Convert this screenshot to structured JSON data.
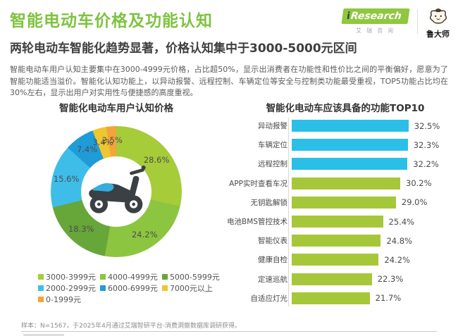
{
  "header": {
    "title": "智能电动车价格及功能认知",
    "subtitle": "两轮电动车智能化趋势显著，价格认知集中于3000-5000元区间",
    "iresearch": {
      "i": "i",
      "rest": "Research",
      "caption": "艾瑞咨询"
    },
    "ludashi": {
      "name": "鲁大师"
    }
  },
  "intro_paragraph": "智能电动车用户认知主要集中在3000-4999元价格，占比超50%，显示出消费者在功能性和性价比之间的平衡偏好，愿意为了智能功能适当溢价。智能化认知功能上，以异动报警、远程控制、车辆定位等安全与控制类功能最受重视，TOP5功能占比均在30%左右，显示出用户对实用性与便捷感的高度重视。",
  "footer": {
    "source_note": "样本：N=1567，于2025年4月通过艾瑞智研平台-消费洞察数据库调研获得。"
  },
  "colors": {
    "title_green": "#7fc241",
    "bar_cyan": "#2bbfe8",
    "bar_green": "#a6c73a",
    "scooter_body": "#3b4045",
    "scooter_seat": "#35aedd"
  },
  "chart_data": [
    {
      "type": "pie",
      "donut": true,
      "title": "智能化电动车用户认知价格",
      "unit": "%",
      "start_angle_deg": 0,
      "direction": "clockwise",
      "legend_position": "bottom",
      "center_icon": "scooter-icon",
      "series": [
        {
          "name": "3000-3999元",
          "value": 28.6,
          "color": "#a6cc3a"
        },
        {
          "name": "4000-4999元",
          "value": 24.2,
          "color": "#8cc540"
        },
        {
          "name": "5000-5999元",
          "value": 18.3,
          "color": "#67a639"
        },
        {
          "name": "2000-2999元",
          "value": 15.6,
          "color": "#3fbde9"
        },
        {
          "name": "6000-6999元",
          "value": 7.4,
          "color": "#1f9cd8"
        },
        {
          "name": "7000元以上",
          "value": 3.4,
          "color": "#eec72f"
        },
        {
          "name": "0-1999元",
          "value": 2.5,
          "color": "#f2a53a"
        }
      ]
    },
    {
      "type": "bar",
      "orientation": "horizontal",
      "title": "智能化电动车应该具备的功能TOP10",
      "unit": "%",
      "xlim": [
        0,
        35
      ],
      "grid": false,
      "items": [
        {
          "label": "异动报警",
          "value": 32.5,
          "color": "#2bbfe8"
        },
        {
          "label": "车辆定位",
          "value": 32.3,
          "color": "#2bbfe8"
        },
        {
          "label": "远程控制",
          "value": 32.2,
          "color": "#2bbfe8"
        },
        {
          "label": "APP实时查看车况",
          "value": 30.2,
          "color": "#a6c73a"
        },
        {
          "label": "无钥匙解锁",
          "value": 29.0,
          "color": "#a6c73a"
        },
        {
          "label": "电池BMS管控技术",
          "value": 25.4,
          "color": "#a6c73a"
        },
        {
          "label": "智能仪表",
          "value": 24.8,
          "color": "#a6c73a"
        },
        {
          "label": "健康自检",
          "value": 24.2,
          "color": "#a6c73a"
        },
        {
          "label": "定速巡航",
          "value": 22.3,
          "color": "#a6c73a"
        },
        {
          "label": "自适应灯光",
          "value": 21.7,
          "color": "#a6c73a"
        }
      ]
    }
  ]
}
